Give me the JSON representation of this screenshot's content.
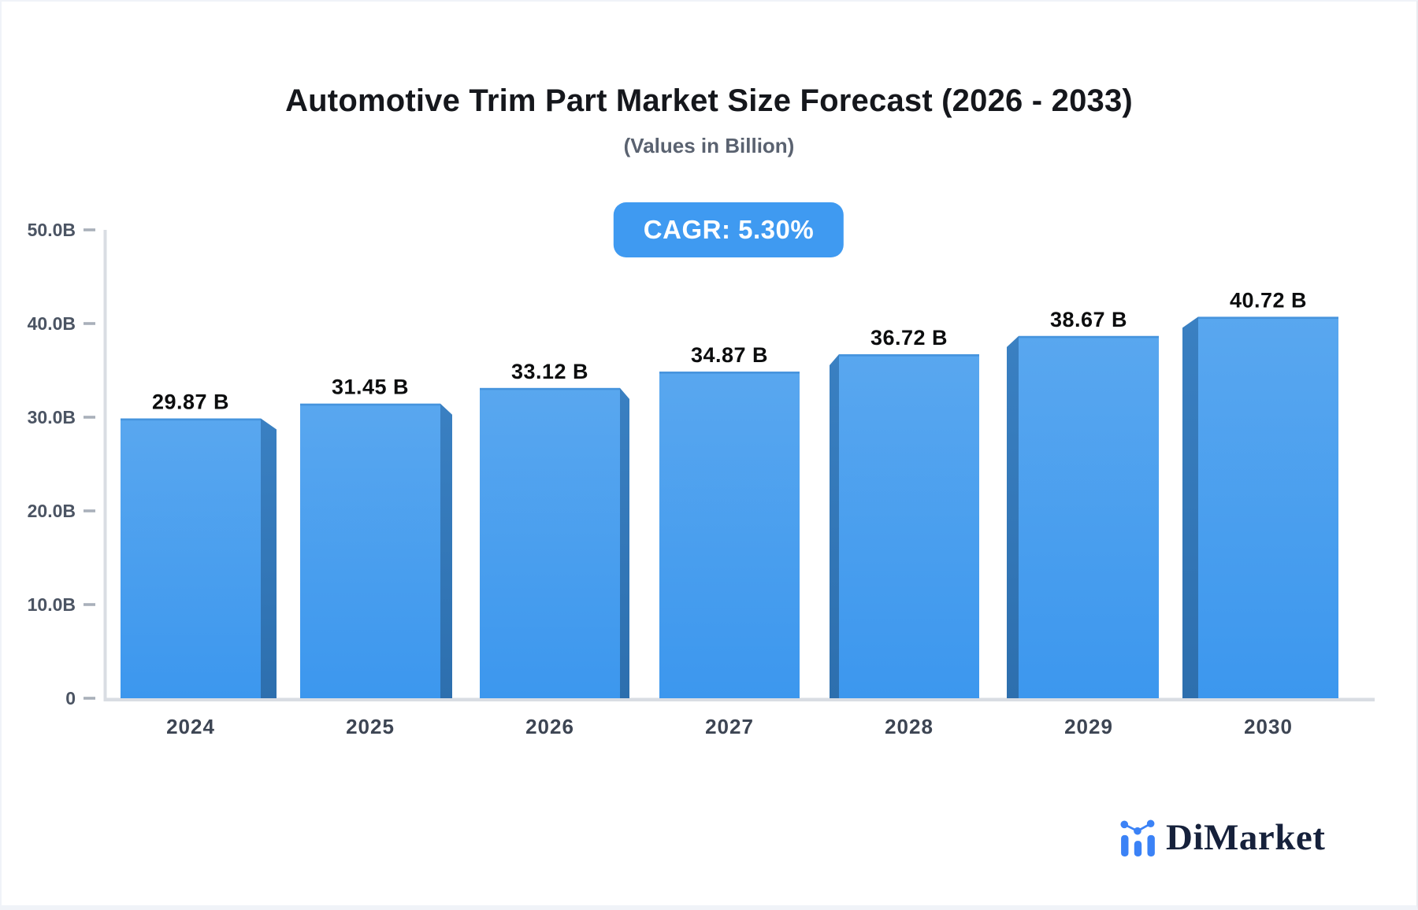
{
  "header": {
    "title": "Automotive Trim Part Market Size Forecast (2026 - 2033)",
    "subtitle": "(Values in Billion)",
    "cagr_badge": "CAGR: 5.30%"
  },
  "chart_data": {
    "type": "bar",
    "title": "Automotive Trim Part Market Size Forecast (2026 - 2033)",
    "subtitle": "(Values in Billion)",
    "categories": [
      "2024",
      "2025",
      "2026",
      "2027",
      "2028",
      "2029",
      "2030"
    ],
    "values": [
      29.87,
      31.45,
      33.12,
      34.87,
      36.72,
      38.67,
      40.72
    ],
    "value_labels": [
      "29.87 B",
      "31.45 B",
      "33.12 B",
      "34.87 B",
      "36.72 B",
      "38.67 B",
      "40.72 B"
    ],
    "cagr_label": "CAGR: 5.30%",
    "ylim": [
      0,
      50
    ],
    "yticks": [
      {
        "value": 50,
        "label": "50.0B"
      },
      {
        "value": 40,
        "label": "40.0B"
      },
      {
        "value": 30,
        "label": "30.0B"
      },
      {
        "value": 20,
        "label": "20.0B"
      },
      {
        "value": 10,
        "label": "10.0B"
      },
      {
        "value": 0,
        "label": "0"
      }
    ],
    "xlabel": "",
    "ylabel": "",
    "grid": false,
    "legend": false,
    "style": "3d-extruded-bars, extrusion faces away from center"
  },
  "logo": {
    "text": "DiMarket"
  },
  "colors": {
    "bar_face_top": "#59A7EF",
    "bar_face_bottom": "#3C97EE",
    "bar_face_edge": "#3E8BD5",
    "bar_side_top": "#3A80C2",
    "bar_side_bottom": "#2D6FAE",
    "badge_bg": "#3F9AF1",
    "badge_text": "#FFFFFF",
    "axis_line": "#D9DDE3",
    "tick": "#A9B0BA",
    "ytick_label": "#4B5463",
    "xtick_label": "#3D4553",
    "value_label": "#0C0D0E",
    "title": "#15171C",
    "subtitle": "#5A6270",
    "logo_text": "#16213B",
    "logo_icon": "#3B82F6"
  }
}
